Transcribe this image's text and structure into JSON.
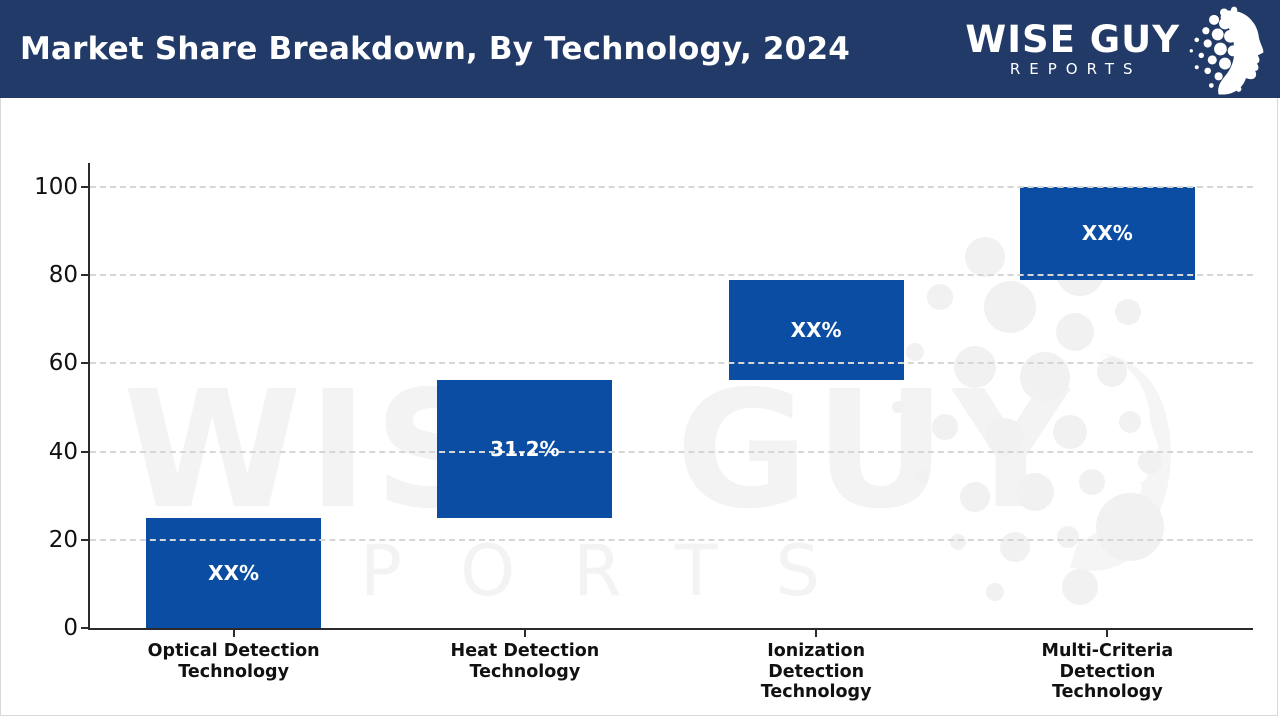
{
  "header": {
    "title": "Market Share Breakdown, By Technology, 2024",
    "bg_color": "#223A67",
    "logo": {
      "line1": "WISE GUY",
      "line2": "REPORTS"
    }
  },
  "watermark": {
    "line1": "WISE GUY",
    "line2": "REPORTS"
  },
  "chart_data": {
    "type": "bar",
    "subtype": "waterfall",
    "title": "Market Share Breakdown, By Technology, 2024",
    "categories": [
      [
        "Optical Detection",
        "Technology"
      ],
      [
        "Heat Detection",
        "Technology"
      ],
      [
        "Ionization",
        "Detection",
        "Technology"
      ],
      [
        "Multi-Criteria",
        "Detection",
        "Technology"
      ]
    ],
    "segments": [
      {
        "start": 0,
        "end": 25,
        "value": 25,
        "label": "XX%"
      },
      {
        "start": 25,
        "end": 56.2,
        "value": 31.2,
        "label": "31.2%"
      },
      {
        "start": 56.2,
        "end": 79,
        "value": 22.8,
        "label": "XX%"
      },
      {
        "start": 79,
        "end": 100,
        "value": 21,
        "label": "XX%"
      }
    ],
    "ylim": [
      0,
      100
    ],
    "yticks": [
      0,
      20,
      40,
      60,
      80,
      100
    ],
    "xlabel": "",
    "ylabel": "",
    "grid": "horizontal-dashed",
    "legend": "none",
    "bar_color": "#0b4da2",
    "bar_label_color": "#ffffff",
    "axis_color": "#2b2b2b",
    "grid_color": "#d6d6d6",
    "tick_label_color": "#111111"
  }
}
